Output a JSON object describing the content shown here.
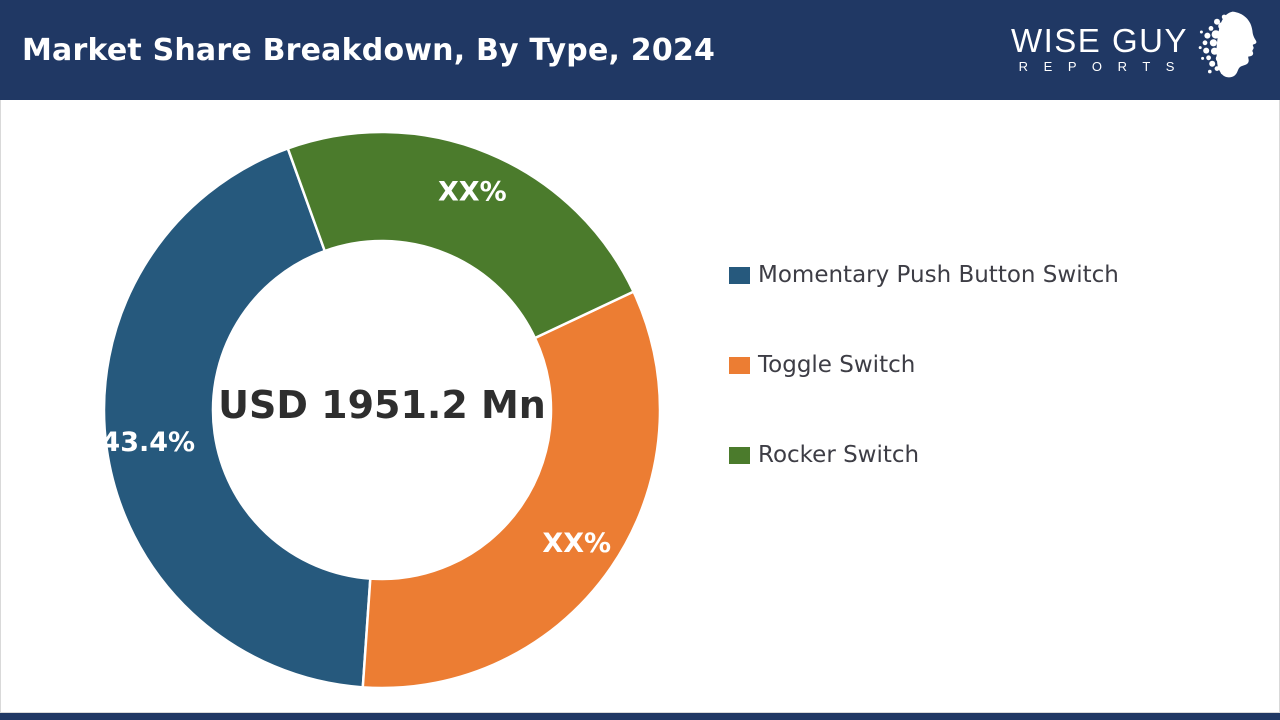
{
  "header": {
    "title": "Market Share Breakdown, By Type, 2024",
    "logo": {
      "name_line": "WISE GUY",
      "sub_line": "R E P O R T S"
    }
  },
  "watermark": {
    "line1": "WISE GUY",
    "line2": "R E P O R T S"
  },
  "chart_data": {
    "type": "pie",
    "subtype": "donut",
    "title": "Market Share Breakdown, By Type, 2024",
    "center_label": "USD 1951.2 Mn",
    "start_angle_deg": 109.8,
    "direction": "counterclockwise",
    "legend_position": "right",
    "slices": [
      {
        "label": "Momentary Push Button Switch",
        "value_pct": 43.4,
        "display_label": "43.4%",
        "color": "#26597D"
      },
      {
        "label": "Toggle Switch",
        "value_pct": 33.1,
        "display_label": "XX%",
        "color": "#EC7D33"
      },
      {
        "label": "Rocker Switch",
        "value_pct": 23.5,
        "display_label": "XX%",
        "color": "#4B7B2C"
      }
    ]
  },
  "colors": {
    "header_bg": "#203864",
    "frame": "#d9d9d9",
    "center_text": "#2e2e2e",
    "legend_text": "#3d3d45",
    "slice_label_text": "#ffffff",
    "watermark": "#f2f2f5"
  }
}
